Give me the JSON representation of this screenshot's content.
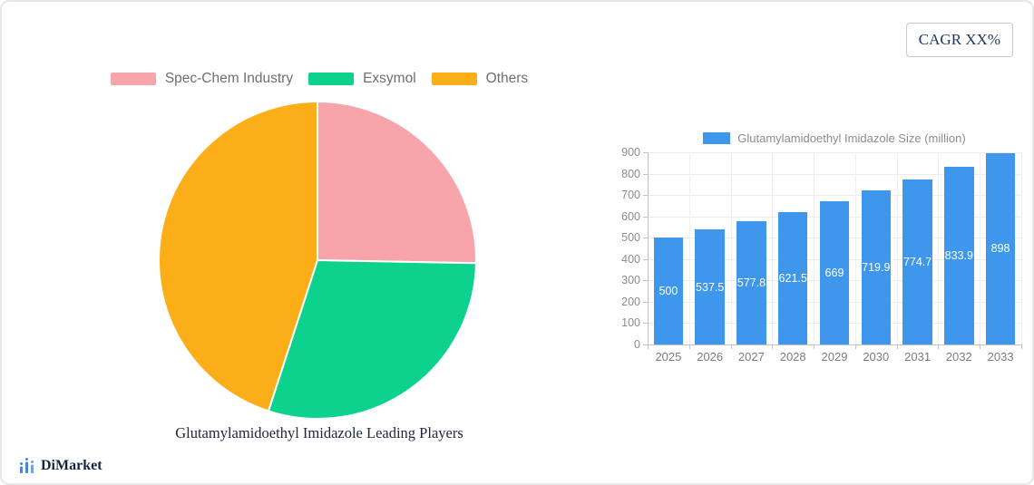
{
  "header": {
    "cagr_label": "CAGR XX%"
  },
  "footer": {
    "logo_text": "DiMarket"
  },
  "colors": {
    "accent_blue": "#3e97ea",
    "pie_pink": "#f7a4aa",
    "pie_green": "#0dd28e",
    "pie_orange": "#fbae17",
    "legend_text": "#6e6e6e",
    "axis_text": "#8c8c8c",
    "serif_navy": "#1f3864"
  },
  "chart_data": [
    {
      "type": "pie",
      "title": "Glutamylamidoethyl Imidazole Leading Players",
      "labels": [
        "Spec-Chem Industry",
        "Exsymol",
        "Others"
      ],
      "values": [
        25.3,
        29.7,
        45.0
      ],
      "colors": [
        "#f7a4aa",
        "#0dd28e",
        "#fbae17"
      ],
      "legend_position": "top",
      "start_angle_deg": 0,
      "direction": "clockwise"
    },
    {
      "type": "bar",
      "legend": "Glutamylamidoethyl Imidazole Size (million)",
      "categories": [
        "2025",
        "2026",
        "2027",
        "2028",
        "2029",
        "2030",
        "2031",
        "2032",
        "2033"
      ],
      "values": [
        500,
        537.5,
        577.8,
        621.5,
        669,
        719.9,
        774.7,
        833.9,
        898
      ],
      "bar_color": "#3e97ea",
      "value_label_color": "#ffffff",
      "ylim": [
        0,
        900
      ],
      "ytick_step": 100,
      "grid": true,
      "legend_position": "top"
    }
  ]
}
